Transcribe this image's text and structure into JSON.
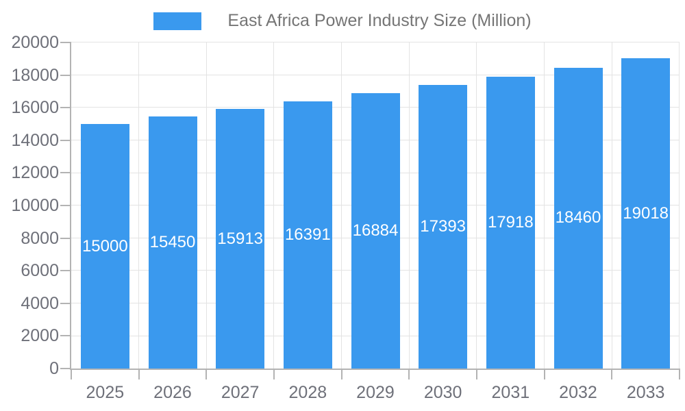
{
  "chart_data": {
    "type": "bar",
    "title": "East Africa Power Industry Size (Million)",
    "legend_entries": [
      "East Africa Power Industry Size (Million)"
    ],
    "legend_position": "top-center",
    "categories": [
      "2025",
      "2026",
      "2027",
      "2028",
      "2029",
      "2030",
      "2031",
      "2032",
      "2033"
    ],
    "values": [
      15000,
      15450,
      15913,
      16391,
      16884,
      17393,
      17918,
      18460,
      19018
    ],
    "xlabel": "",
    "ylabel": "",
    "ylim": [
      0,
      20000
    ],
    "ytick_step": 2000,
    "yticks": [
      0,
      2000,
      4000,
      6000,
      8000,
      10000,
      12000,
      14000,
      16000,
      18000,
      20000
    ],
    "grid": "horizontal and vertical light gray gridlines",
    "value_labels": "white, centered inside bars",
    "colors": {
      "bar": "#3a99ee",
      "grid": "#e3e3e3",
      "axis": "#b3b3b3",
      "axis_text": "#6e7079",
      "legend_text": "#757575",
      "value_text": "#ffffff",
      "background": "#ffffff"
    }
  }
}
